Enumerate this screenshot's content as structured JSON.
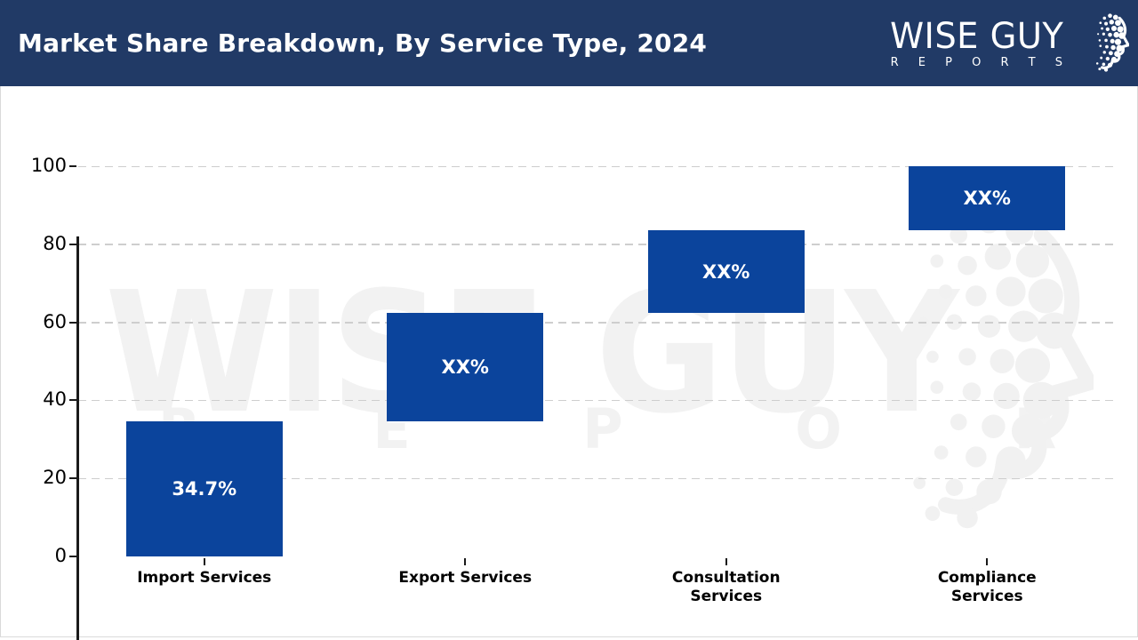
{
  "header": {
    "title": "Market Share Breakdown, By Service Type, 2024",
    "bg_color": "#213a66",
    "logo": {
      "line1": "WISE GUY",
      "line2": "R E P O R T S"
    }
  },
  "watermark": {
    "line1": "WISE GUY",
    "line2": "R E P O R T S"
  },
  "chart_data": {
    "type": "bar",
    "subtype": "waterfall",
    "title": "Market Share Breakdown, By Service Type, 2024",
    "categories": [
      "Import Services",
      "Export Services",
      "Consultation Services",
      "Compliance Services"
    ],
    "segments": [
      {
        "category": "Import Services",
        "start": 0,
        "end": 34.7,
        "label": "34.7%"
      },
      {
        "category": "Export Services",
        "start": 34.7,
        "end": 62.5,
        "label": "XX%"
      },
      {
        "category": "Consultation Services",
        "start": 62.5,
        "end": 83.5,
        "label": "XX%"
      },
      {
        "category": "Compliance Services",
        "start": 83.5,
        "end": 100,
        "label": "XX%"
      }
    ],
    "yticks": [
      0,
      20,
      40,
      60,
      80,
      100
    ],
    "ylim": [
      0,
      104
    ],
    "xlabel": "",
    "ylabel": "",
    "grid": "horizontal-dashed",
    "legend": "none",
    "bar_color": "#0b449c",
    "bar_label_color": "#ffffff",
    "axis_color": "#1a1a1a",
    "grid_color": "#cecece"
  }
}
